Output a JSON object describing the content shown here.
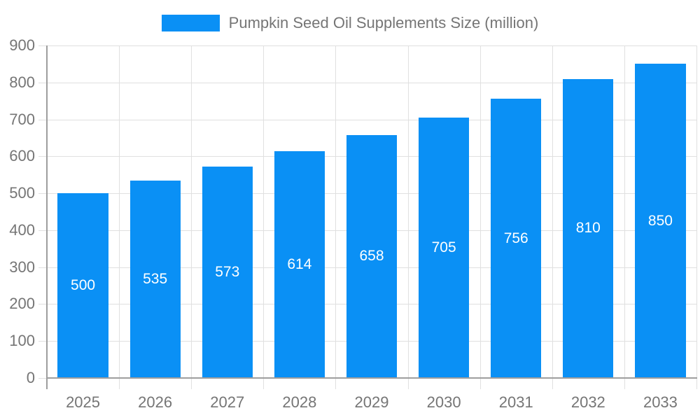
{
  "chart_data": {
    "type": "bar",
    "title": "Pumpkin Seed Oil Supplements Size (million)",
    "legend_position": "top",
    "categories": [
      "2025",
      "2026",
      "2027",
      "2028",
      "2029",
      "2030",
      "2031",
      "2032",
      "2033"
    ],
    "series": [
      {
        "name": "Pumpkin Seed Oil Supplements Size (million)",
        "values": [
          500,
          535,
          573,
          614,
          658,
          705,
          756,
          810,
          850
        ]
      }
    ],
    "value_labels": [
      "500",
      "535",
      "573",
      "614",
      "658",
      "705",
      "756",
      "810",
      "850"
    ],
    "xlabel": "",
    "ylabel": "",
    "ylim": [
      0,
      900
    ],
    "yticks": [
      0,
      100,
      200,
      300,
      400,
      500,
      600,
      700,
      800,
      900
    ],
    "grid": true,
    "colors": {
      "bar": "#0a90f5",
      "grid": "#e0e0e0",
      "axis": "#9e9e9e",
      "tick_text": "#757575",
      "value_text": "#ffffff",
      "background": "#ffffff"
    }
  }
}
